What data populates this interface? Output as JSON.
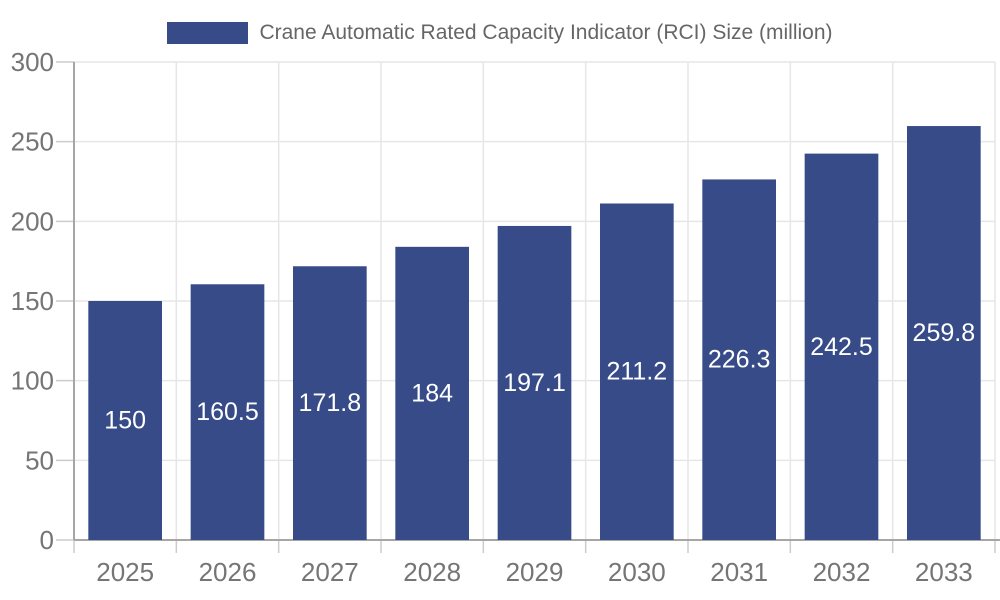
{
  "legend": {
    "label": "Crane Automatic Rated Capacity Indicator (RCI) Size (million)"
  },
  "chart_data": {
    "type": "bar",
    "title": "Crane Automatic Rated Capacity Indicator (RCI) Size (million)",
    "categories": [
      "2025",
      "2026",
      "2027",
      "2028",
      "2029",
      "2030",
      "2031",
      "2032",
      "2033"
    ],
    "values": [
      150,
      160.5,
      171.8,
      184,
      197.1,
      211.2,
      226.3,
      242.5,
      259.8
    ],
    "value_labels": [
      "150",
      "160.5",
      "171.8",
      "184",
      "197.1",
      "211.2",
      "226.3",
      "242.5",
      "259.8"
    ],
    "xlabel": "",
    "ylabel": "",
    "ylim": [
      0,
      300
    ],
    "y_ticks": [
      0,
      50,
      100,
      150,
      200,
      250,
      300
    ],
    "grid": true,
    "legend_position": "top",
    "colors": {
      "bar": "#364b87",
      "value_label": "#ffffff",
      "axis_label": "#757575",
      "legend_text": "#666666",
      "gridline": "#e6e6e6",
      "axis_line": "#a6a6a6",
      "tick": "#cccccc",
      "background": "#ffffff"
    }
  }
}
